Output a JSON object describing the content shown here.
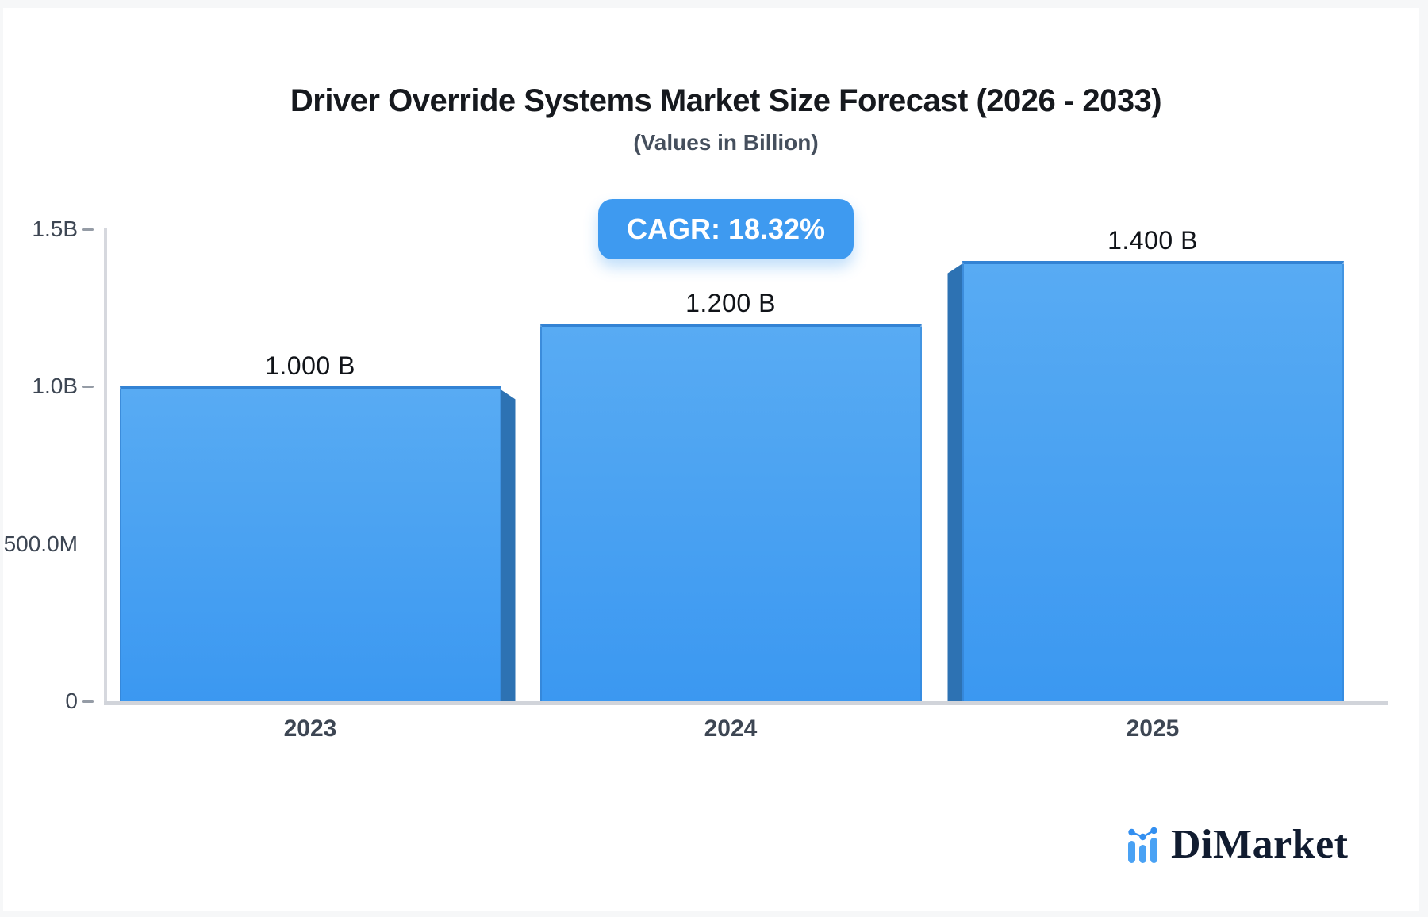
{
  "chart_data": {
    "type": "bar",
    "title": "Driver Override Systems Market Size Forecast (2026 - 2033)",
    "subtitle": "(Values in Billion)",
    "categories": [
      "2023",
      "2024",
      "2025"
    ],
    "values": [
      1.0,
      1.2,
      1.4
    ],
    "bar_labels": [
      "1.000 B",
      "1.200 B",
      "1.400 B"
    ],
    "ylim": [
      0,
      1.5
    ],
    "y_ticks": [
      {
        "label": "1.5B",
        "value": 1.5,
        "dash": true
      },
      {
        "label": "1.0B",
        "value": 1.0,
        "dash": true
      },
      {
        "label": "500.0M",
        "value": 0.5,
        "dash": false
      },
      {
        "label": "0",
        "value": 0,
        "dash": true
      }
    ],
    "grid": false,
    "legend": false
  },
  "badge": {
    "label": "CAGR: 18.32%"
  },
  "logo": {
    "text": "DiMarket",
    "icon": "bar-chart-trend-icon"
  },
  "colors": {
    "bar_gradient_top": "#58abf3",
    "bar_gradient_bottom": "#3b98f1",
    "bar_top_border": "#3383d4",
    "bar_side_face": "#2d72b3",
    "badge_bg": "#3e9af0",
    "badge_text": "#ffffff",
    "axis_line": "#d6d8de",
    "tick_dash": "#959ca6",
    "axis_label": "#3d4653",
    "title_text": "#16191e",
    "subtitle_text": "#454f5d",
    "value_label": "#101318",
    "logo_blue": "#4aa2f4",
    "logo_dot_blue": "#338ff0",
    "logo_text_color": "#111c30"
  }
}
